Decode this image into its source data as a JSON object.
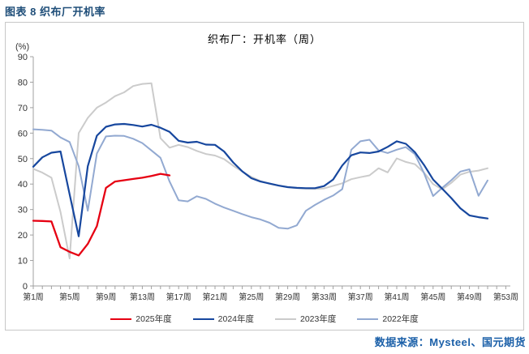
{
  "page": {
    "header_title": "图表 8 织布厂开机率",
    "footer_source": "数据来源：Mysteel、国元期货"
  },
  "colors": {
    "header_text": "#1f4e79",
    "footer_text": "#1a5fa8",
    "axis": "#a0a0a0",
    "tick_label": "#333333",
    "box_border": "#c8c8c8",
    "series_2025": "#e60012",
    "series_2024": "#17479e",
    "series_2023": "#cbcbcb",
    "series_2022": "#92a9d1"
  },
  "chart_data": {
    "type": "line",
    "title": "织布厂：开机率（周）",
    "y_unit_label": "(%)",
    "xlabel": "",
    "ylabel": "",
    "ylim": [
      0,
      90
    ],
    "y_ticks": [
      0,
      10,
      20,
      30,
      40,
      50,
      60,
      70,
      80,
      90
    ],
    "x_unit": "week",
    "weeks_total": 53,
    "x_tick_weeks": [
      1,
      5,
      9,
      13,
      17,
      21,
      25,
      29,
      33,
      37,
      41,
      45,
      49,
      53
    ],
    "x_tick_labels": [
      "第1周",
      "第5周",
      "第9周",
      "第13周",
      "第17周",
      "第21周",
      "第25周",
      "第29周",
      "第33周",
      "第37周",
      "第41周",
      "第45周",
      "第49周",
      "第53周"
    ],
    "grid": false,
    "legend_position": "bottom",
    "series": [
      {
        "name": "2025年度",
        "color": "#e60012",
        "stroke_width": 2.3,
        "start_week": 1,
        "values": [
          25.6,
          25.5,
          25.3,
          15.2,
          13.4,
          12.0,
          16.5,
          23.5,
          38.5,
          41.0,
          41.5,
          42.0,
          42.5,
          43.2,
          44.0,
          43.4
        ]
      },
      {
        "name": "2024年度",
        "color": "#17479e",
        "stroke_width": 2.2,
        "start_week": 1,
        "values": [
          46.8,
          50.5,
          52.3,
          52.8,
          36.0,
          19.5,
          47.0,
          59.0,
          62.5,
          63.4,
          63.6,
          63.2,
          62.6,
          63.3,
          62.1,
          60.5,
          57.0,
          56.3,
          56.6,
          55.5,
          55.4,
          52.8,
          48.5,
          45.0,
          42.3,
          41.0,
          40.2,
          39.4,
          38.8,
          38.5,
          38.4,
          38.4,
          39.2,
          41.8,
          47.3,
          51.3,
          52.4,
          52.2,
          52.8,
          54.6,
          56.8,
          55.8,
          52.5,
          47.5,
          41.8,
          38.2,
          34.5,
          30.5,
          27.7,
          27.0,
          26.5
        ]
      },
      {
        "name": "2023年度",
        "color": "#cbcbcb",
        "stroke_width": 2,
        "start_week": 1,
        "values": [
          46.0,
          44.5,
          42.5,
          29.0,
          10.8,
          60.0,
          66.0,
          70.0,
          72.0,
          74.5,
          76.0,
          78.5,
          79.3,
          79.6,
          58.0,
          54.3,
          55.4,
          54.5,
          53.0,
          51.8,
          51.2,
          49.8,
          47.2,
          44.9,
          42.8,
          41.2,
          40.1,
          39.4,
          38.8,
          38.4,
          38.2,
          38.1,
          38.3,
          39.3,
          40.3,
          41.9,
          42.7,
          43.4,
          46.2,
          44.6,
          50.1,
          48.7,
          47.8,
          44.5,
          40.0,
          37.9,
          40.5,
          43.7,
          44.8,
          45.3,
          46.2
        ]
      },
      {
        "name": "2022年度",
        "color": "#92a9d1",
        "stroke_width": 2,
        "start_week": 1,
        "values": [
          61.5,
          61.3,
          61.0,
          58.3,
          56.5,
          47.0,
          29.5,
          52.0,
          58.7,
          59.0,
          58.9,
          57.8,
          56.1,
          53.2,
          50.3,
          41.0,
          33.6,
          33.2,
          35.2,
          34.2,
          32.3,
          30.8,
          29.5,
          28.2,
          27.0,
          26.1,
          24.8,
          22.8,
          22.5,
          23.8,
          29.5,
          31.8,
          33.8,
          35.5,
          38.0,
          53.5,
          56.8,
          57.4,
          53.2,
          52.2,
          53.5,
          54.5,
          51.7,
          44.3,
          35.3,
          38.5,
          41.5,
          44.9,
          45.8,
          35.4,
          41.4
        ]
      }
    ]
  }
}
